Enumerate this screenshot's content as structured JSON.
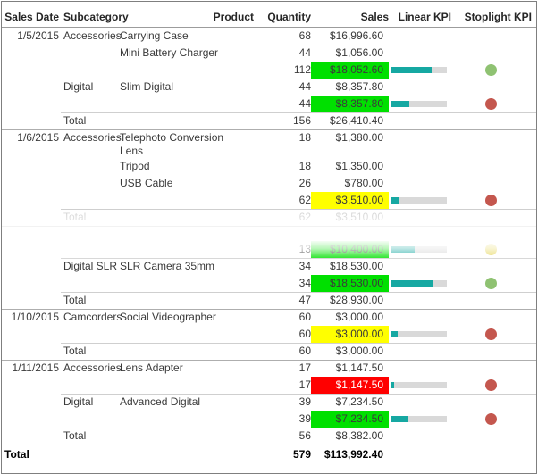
{
  "report": {
    "columns": [
      {
        "key": "sales-date",
        "label": "Sales Date"
      },
      {
        "key": "subcategory",
        "label": "Subcategory"
      },
      {
        "key": "product",
        "label": "Product"
      },
      {
        "key": "quantity",
        "label": "Quantity"
      },
      {
        "key": "sales",
        "label": "Sales"
      },
      {
        "key": "linear-kpi",
        "label": "Linear KPI"
      },
      {
        "key": "stoplight-kpi",
        "label": "Stoplight KPI"
      }
    ],
    "rows": [
      {
        "type": "detail",
        "date": "1/5/2015",
        "subcategory": "Accessories",
        "product": "Carrying Case",
        "quantity": "68",
        "sales": "$16,996.60"
      },
      {
        "type": "detail",
        "product": "Mini Battery Charger",
        "quantity": "44",
        "sales": "$1,056.00"
      },
      {
        "type": "subtotal",
        "quantity": "112",
        "sales": "$18,052.60",
        "sales_kpi": "green",
        "bar_pct": 72,
        "dot": "green"
      },
      {
        "type": "detail",
        "subcategory": "Digital",
        "product": "Slim Digital",
        "quantity": "44",
        "sales": "$8,357.80",
        "sep": "sub"
      },
      {
        "type": "subtotal",
        "quantity": "44",
        "sales": "$8,357.80",
        "sales_kpi": "green",
        "bar_pct": 33,
        "dot": "red"
      },
      {
        "type": "total",
        "subcategory": "Total",
        "quantity": "156",
        "sales": "$26,410.40",
        "sep": "sub"
      },
      {
        "type": "detail",
        "date": "1/6/2015",
        "subcategory": "Accessories",
        "product": "Telephoto Conversion Lens",
        "quantity": "18",
        "sales": "$1,380.00",
        "sep": "group",
        "tall": true
      },
      {
        "type": "detail",
        "product": "Tripod",
        "quantity": "18",
        "sales": "$1,350.00"
      },
      {
        "type": "detail",
        "product": "USB Cable",
        "quantity": "26",
        "sales": "$780.00"
      },
      {
        "type": "subtotal",
        "quantity": "62",
        "sales": "$3,510.00",
        "sales_kpi": "yellow",
        "bar_pct": 14,
        "dot": "red"
      },
      {
        "type": "total",
        "subcategory": "Total",
        "quantity": "62",
        "sales": "$3,510.00",
        "sep": "sub",
        "dim": true
      },
      {
        "type": "blank",
        "sep": "group"
      },
      {
        "type": "subtotal",
        "quantity": "13",
        "sales": "$10,400.00",
        "sales_kpi": "green",
        "bar_pct": 42,
        "dot": "yellow"
      },
      {
        "type": "detail",
        "subcategory": "Digital SLR",
        "product": "SLR Camera 35mm",
        "quantity": "34",
        "sales": "$18,530.00",
        "sep": "sub"
      },
      {
        "type": "subtotal",
        "quantity": "34",
        "sales": "$18,530.00",
        "sales_kpi": "green",
        "bar_pct": 74,
        "dot": "green"
      },
      {
        "type": "total",
        "subcategory": "Total",
        "quantity": "47",
        "sales": "$28,930.00",
        "sep": "sub"
      },
      {
        "type": "detail",
        "date": "1/10/2015",
        "subcategory": "Camcorders",
        "product": "Social Videographer",
        "quantity": "60",
        "sales": "$3,000.00",
        "sep": "group"
      },
      {
        "type": "subtotal",
        "quantity": "60",
        "sales": "$3,000.00",
        "sales_kpi": "yellow",
        "bar_pct": 12,
        "dot": "red"
      },
      {
        "type": "total",
        "subcategory": "Total",
        "quantity": "60",
        "sales": "$3,000.00",
        "sep": "sub"
      },
      {
        "type": "detail",
        "date": "1/11/2015",
        "subcategory": "Accessories",
        "product": "Lens Adapter",
        "quantity": "17",
        "sales": "$1,147.50",
        "sep": "group"
      },
      {
        "type": "subtotal",
        "quantity": "17",
        "sales": "$1,147.50",
        "sales_kpi": "red",
        "bar_pct": 5,
        "dot": "red"
      },
      {
        "type": "detail",
        "subcategory": "Digital",
        "product": "Advanced Digital",
        "quantity": "39",
        "sales": "$7,234.50",
        "sep": "sub"
      },
      {
        "type": "subtotal",
        "quantity": "39",
        "sales": "$7,234.50",
        "sales_kpi": "green",
        "bar_pct": 29,
        "dot": "red"
      },
      {
        "type": "total",
        "subcategory": "Total",
        "quantity": "56",
        "sales": "$8,382.00",
        "sep": "sub"
      }
    ],
    "grand_total": {
      "label": "Total",
      "quantity": "579",
      "sales": "$113,992.40"
    }
  },
  "colors": {
    "kpi_green": "#00e000",
    "kpi_yellow": "#ffff00",
    "kpi_red": "#ff0000",
    "bar_fill": "#16a8a2",
    "bar_track": "#d9d9d9",
    "dot_green": "#8fc272",
    "dot_red": "#c4574e",
    "dot_yellow": "#e6d75f"
  }
}
